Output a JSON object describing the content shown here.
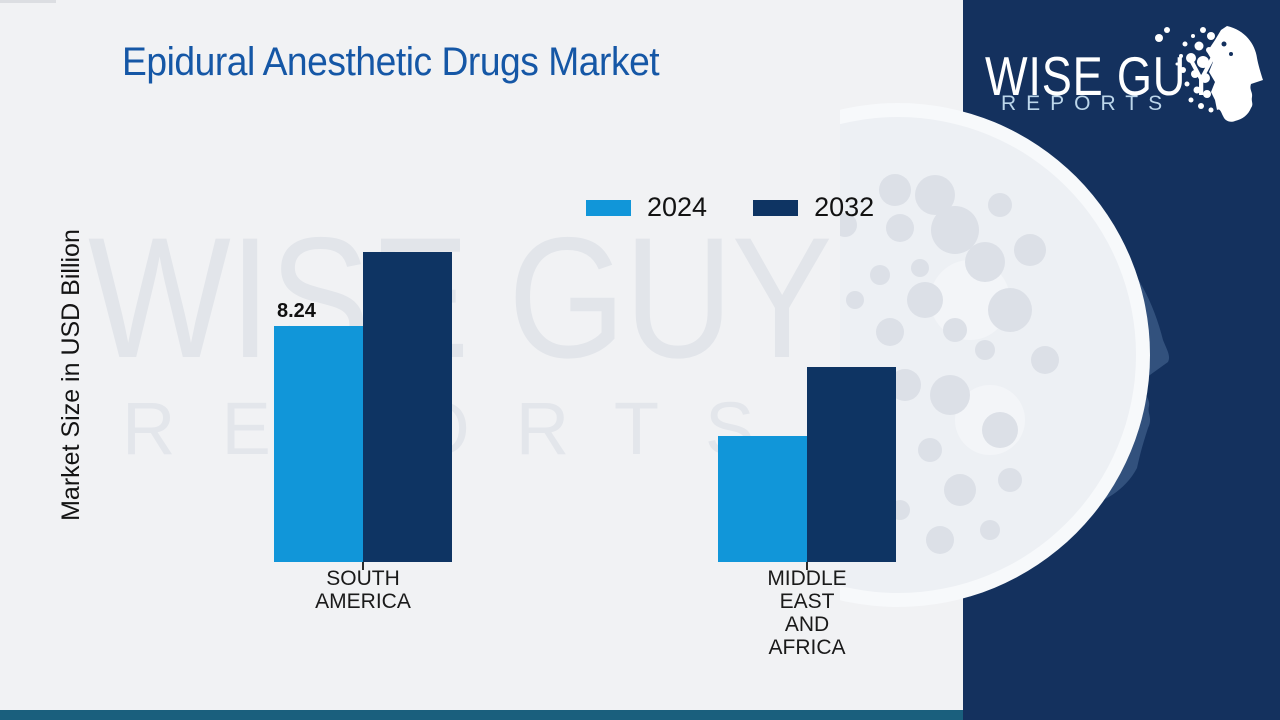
{
  "title": "Epidural Anesthetic Drugs Market",
  "watermark": {
    "line1": "WISE GUY",
    "line2": "REPORTS"
  },
  "logo": {
    "line1": "WISE GUY",
    "line2": "REPORTS"
  },
  "colors": {
    "title_blue": "#1557a6",
    "series_2024_blue": "#1196d9",
    "series_2032_navy": "#0e3463",
    "panel_navy": "#14315e",
    "footer_teal": "#1a5f7d",
    "background": "#f1f2f4"
  },
  "chart_data": {
    "type": "bar",
    "title": "Epidural Anesthetic Drugs Market",
    "ylabel": "Market Size in USD Billion",
    "xlabel": "",
    "grid": false,
    "value_axis_visible": false,
    "legend_position": "top-right",
    "categories": [
      "SOUTH AMERICA",
      "MIDDLE EAST AND AFRICA"
    ],
    "category_display_lines": [
      [
        "SOUTH",
        "AMERICA"
      ],
      [
        "MIDDLE",
        "EAST",
        "AND",
        "AFRICA"
      ]
    ],
    "series": [
      {
        "name": "2024",
        "color": "#1196d9",
        "values": [
          8.24,
          4.4
        ],
        "data_labels": [
          "8.24",
          null
        ]
      },
      {
        "name": "2032",
        "color": "#0e3463",
        "values": [
          10.82,
          6.81
        ],
        "data_labels": [
          null,
          null
        ]
      }
    ]
  }
}
